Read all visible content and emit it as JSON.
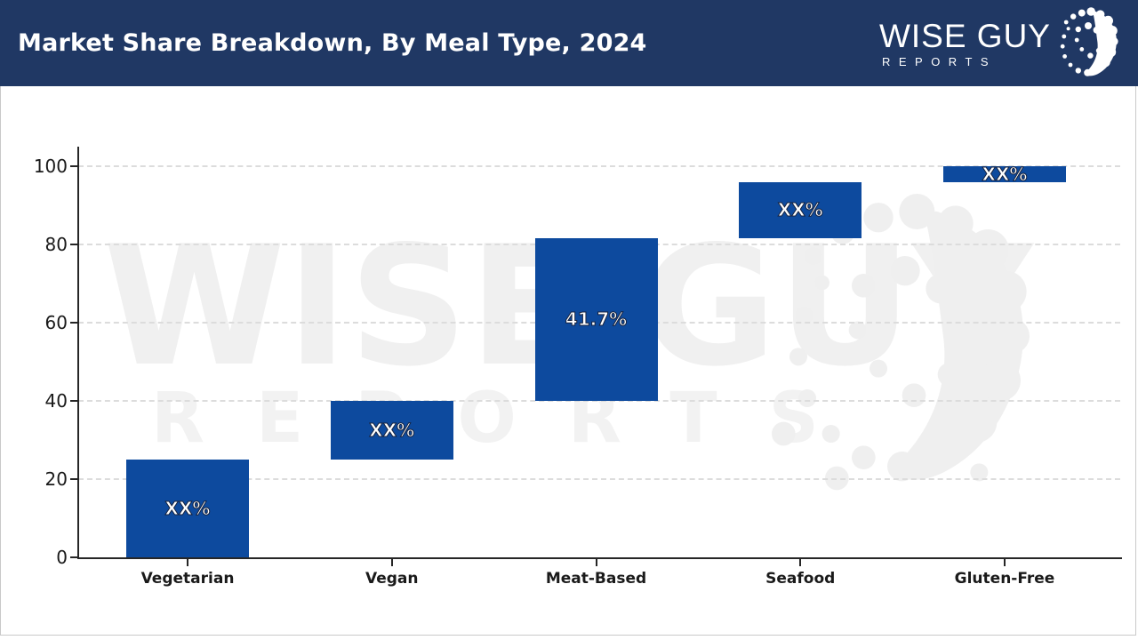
{
  "header": {
    "title": "Market Share Breakdown, By Meal Type, 2024",
    "logo": {
      "name": "WISE GUY",
      "sub": "REPORTS"
    }
  },
  "watermark": {
    "name": "WISE GUY",
    "sub": "REPORTS"
  },
  "chart_data": {
    "type": "bar",
    "subtype": "waterfall",
    "title": "Market Share Breakdown, By Meal Type, 2024",
    "categories": [
      "Vegetarian",
      "Vegan",
      "Meat-Based",
      "Seafood",
      "Gluten-Free"
    ],
    "series": [
      {
        "name": "Market share (%)",
        "bars": [
          {
            "category": "Vegetarian",
            "start": 0,
            "end": 25,
            "label": "XX%"
          },
          {
            "category": "Vegan",
            "start": 25,
            "end": 40,
            "label": "XX%"
          },
          {
            "category": "Meat-Based",
            "start": 40,
            "end": 81.7,
            "label": "41.7%"
          },
          {
            "category": "Seafood",
            "start": 81.7,
            "end": 96,
            "label": "XX%"
          },
          {
            "category": "Gluten-Free",
            "start": 96,
            "end": 100,
            "label": "XX%"
          }
        ]
      }
    ],
    "yticks": [
      0,
      20,
      40,
      60,
      80,
      100
    ],
    "ylim": [
      0,
      105
    ],
    "xlabel": "",
    "ylabel": "",
    "grid": "horizontal-dashed",
    "legend": "none",
    "bar_color": "#0d4a9e",
    "bar_label_color": "#ffffff"
  },
  "colors": {
    "header_bg": "#203864",
    "header_text": "#ffffff",
    "bar": "#0d4a9e",
    "axis": "#262626",
    "gridline": "#dcdcdc",
    "tick_label": "#1a1a1a",
    "watermark": "#f0f0f0",
    "frame_border": "#c9c9c9",
    "background": "#ffffff"
  }
}
